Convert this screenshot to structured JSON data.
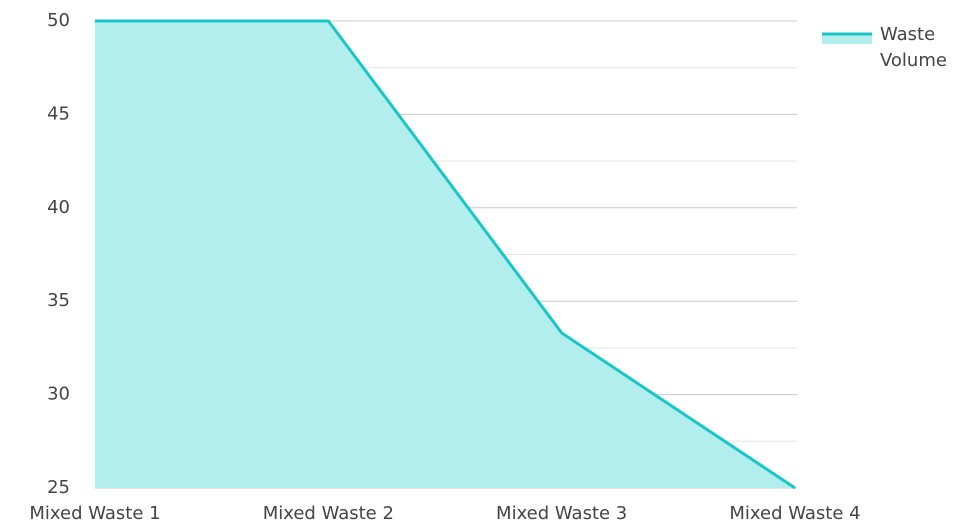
{
  "chart_data": {
    "type": "area",
    "categories": [
      "Mixed Waste 1",
      "Mixed Waste 2",
      "Mixed Waste 3",
      "Mixed Waste 4"
    ],
    "series": [
      {
        "name": "Waste Volume",
        "color": "#19c6c6",
        "fill": "#b2eeee",
        "values": [
          50,
          50,
          33.3,
          25
        ]
      }
    ],
    "ylim": [
      25,
      50
    ],
    "yticks": [
      25,
      30,
      35,
      40,
      45,
      50
    ],
    "minor_yticks": [
      27.5,
      32.5,
      37.5,
      42.5,
      47.5
    ],
    "grid": true,
    "legend": "right"
  }
}
